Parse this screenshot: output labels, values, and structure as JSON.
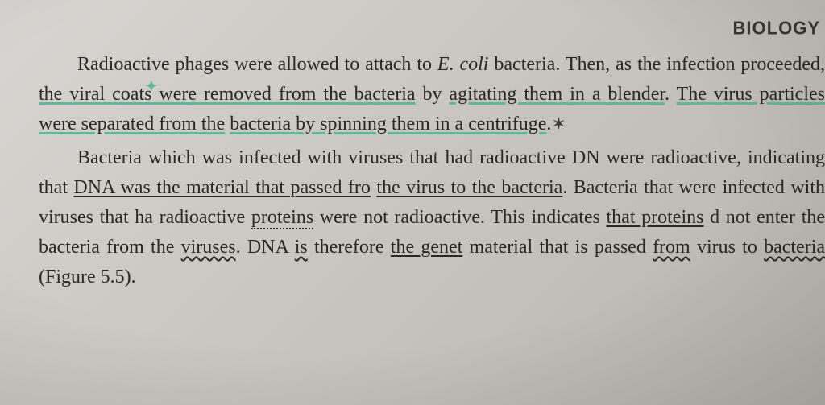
{
  "header": {
    "subject": "BIOLOGY"
  },
  "p1": {
    "t1": "Radioactive phages were allowed to attach to ",
    "ecoli": "E. coli",
    "t2": " bacteria. Then, as the infection proceeded, ",
    "t3": "the viral ",
    "coats": "coats",
    "t4": " were removed from the bacteria",
    "t5": " by ",
    "t6": "agitating them in a blender",
    "t7": ". ",
    "t8": "The virus particles were separated from the",
    "t9": " ",
    "t10": "bacteria by spinning them in a centrifuge",
    "t11": "."
  },
  "p2": {
    "t1": "Bacteria which was infected with viruses that had radioactive DN",
    "t2": " were radioactive, indicating that ",
    "t3": "DNA was the material that passed fro",
    "t4": " ",
    "t5": "the virus to the bacteria",
    "t6": ". Bacteria that were infected with viruses that ha radioactive ",
    "t7": "proteins",
    "t8": " were not radioactive. This indicates ",
    "t9": "that proteins",
    "t10": " d not enter the bacteria from the ",
    "t11": "viruses",
    "t12": ". DNA ",
    "t13": "is",
    "t14": " therefore ",
    "t15": "the genet",
    "t16": " material that is passed ",
    "t17": "from",
    "t18": " virus to ",
    "t19": "bacteria",
    "t20": " (Figure 5.5)."
  },
  "marks": {
    "star": "✶",
    "caret": "✦"
  },
  "colors": {
    "text": "#2a2826",
    "highlight": "#5fb89a",
    "bg1": "#d8d5d2",
    "bg2": "#b8b5b0"
  }
}
